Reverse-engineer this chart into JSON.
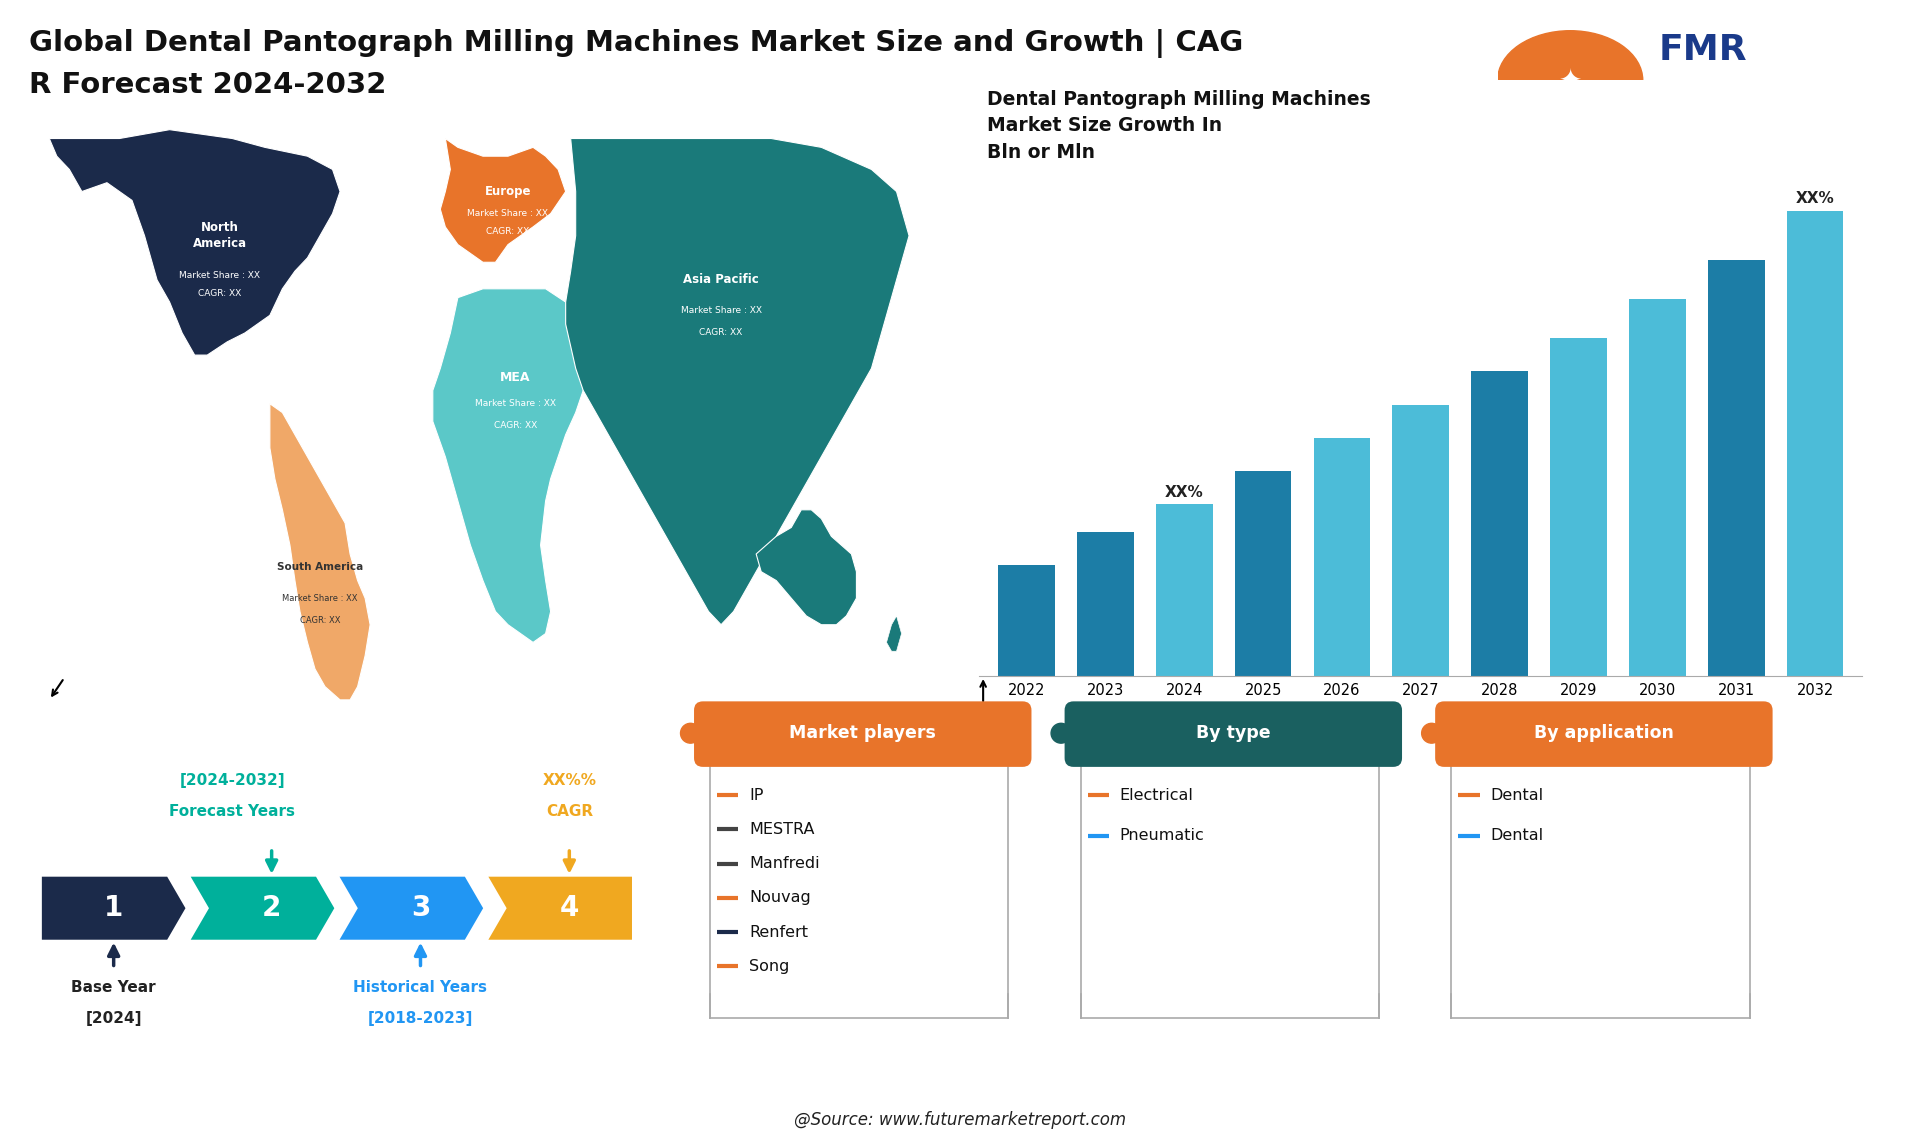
{
  "title_line1": "Global Dental Pantograph Milling Machines Market Size and Growth | CAG",
  "title_line2": "R Forecast 2024-2032",
  "chart_title": "Dental Pantograph Milling Machines\nMarket Size Growth In\nBln or Mln",
  "years": [
    "2022",
    "2023",
    "2024",
    "2025",
    "2026",
    "2027",
    "2028",
    "2029",
    "2030",
    "2031",
    "2032"
  ],
  "bar_heights": [
    2.0,
    2.6,
    3.1,
    3.7,
    4.3,
    4.9,
    5.5,
    6.1,
    6.8,
    7.5,
    8.4
  ],
  "bar_annotations": [
    "",
    "",
    "XX%",
    "",
    "",
    "",
    "",
    "",
    "",
    "",
    "XX%"
  ],
  "bg_color": "#ffffff",
  "title_fontsize": 21,
  "block_colors": [
    "#1b2a4a",
    "#00b09b",
    "#2196f3",
    "#f0a820"
  ],
  "block_labels": [
    "1",
    "2",
    "3",
    "4"
  ],
  "forecast_color": "#00b09b",
  "cagr_color": "#f0a820",
  "historical_color": "#2196f3",
  "base_year_color": "#1b2a4a",
  "market_players_label": "Market players",
  "market_players_color": "#e8742a",
  "by_type_label": "By type",
  "by_type_color": "#1a6060",
  "by_application_label": "By application",
  "by_application_color": "#e8742a",
  "market_players_items": [
    "IP",
    "MESTRA",
    "Manfredi",
    "Nouvag",
    "Renfert",
    "Song"
  ],
  "mp_item_colors": [
    "#e8742a",
    "#444444",
    "#444444",
    "#e8742a",
    "#1b2a4a",
    "#e8742a"
  ],
  "by_type_items": [
    "Electrical",
    "Pneumatic"
  ],
  "bt_item_colors": [
    "#e8742a",
    "#2196f3"
  ],
  "by_application_items": [
    "Dental",
    "Dental"
  ],
  "ba_item_colors": [
    "#e8742a",
    "#2196f3"
  ],
  "source_text": "@Source: www.futuremarketreport.com",
  "na_color": "#1b2a4a",
  "sa_color": "#f0a868",
  "eu_color": "#e8742a",
  "mea_color": "#5bc8c8",
  "ap_color": "#1a7a7a",
  "bar_dark": "#1c7da6",
  "bar_light": "#4cbcd8"
}
